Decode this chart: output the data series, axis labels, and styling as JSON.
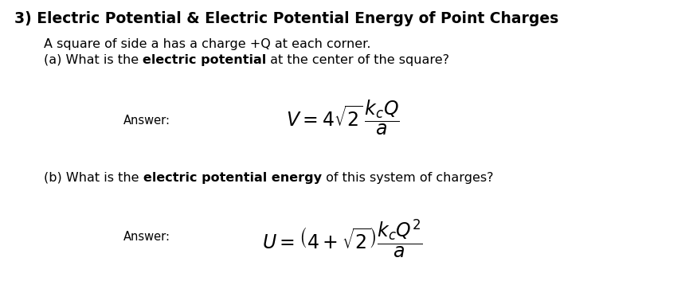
{
  "title": "3) Electric Potential & Electric Potential Energy of Point Charges",
  "line1": "A square of side a has a charge +Q at each corner.",
  "line2_part1": "(a) What is the ",
  "line2_bold": "electric potential",
  "line2_part2": " at the center of the square?",
  "line3_part1": "(b) What is the ",
  "line3_bold": "electric potential energy",
  "line3_part2": " of this system of charges?",
  "answer_label": "Answer:",
  "formula_a": "$V = 4\\sqrt{2}\\,\\dfrac{k_c Q}{a}$",
  "formula_b": "$U = \\left(4 + \\sqrt{2}\\right)\\dfrac{k_c Q^{2}}{a}$",
  "bg_color": "#ffffff",
  "text_color": "#000000",
  "title_fontsize": 13.5,
  "body_fontsize": 11.5,
  "formula_a_fontsize": 17,
  "formula_b_fontsize": 17,
  "answer_fontsize": 10.5,
  "fig_width": 8.75,
  "fig_height": 3.58,
  "dpi": 100
}
